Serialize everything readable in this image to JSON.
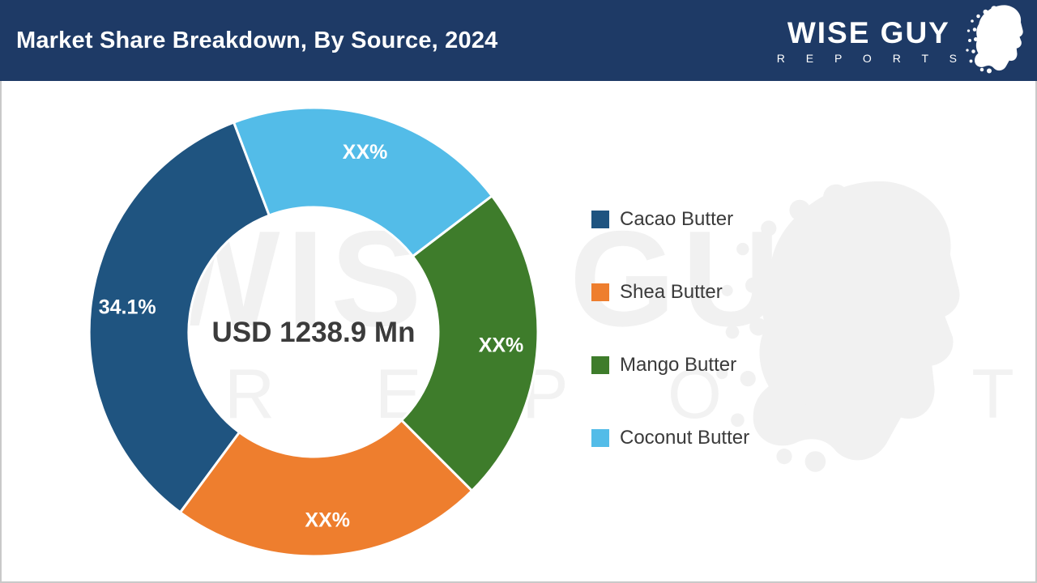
{
  "header": {
    "title": "Market Share Breakdown, By Source, 2024",
    "bg_color": "#1e3a66",
    "logo": {
      "line1": "WISE GUY",
      "line2": "R E P O R T S"
    }
  },
  "watermark": {
    "line1": "WISE GUY",
    "line2": "R E P O R T S"
  },
  "chart_data": {
    "type": "donut",
    "title": "Market Share Breakdown, By Source, 2024",
    "center_label": "USD 1238.9 Mn",
    "legend_position": "right",
    "start_angle_deg": 110.8,
    "direction": "counterclockwise",
    "segments": [
      {
        "name": "Cacao Butter",
        "display_label": "34.1%",
        "share_pct": 34.1,
        "color": "#1f5480"
      },
      {
        "name": "Shea Butter",
        "display_label": "XX%",
        "share_pct": 22.6,
        "color": "#ee7e2e"
      },
      {
        "name": "Mango Butter",
        "display_label": "XX%",
        "share_pct": 22.9,
        "color": "#3e7c2b"
      },
      {
        "name": "Coconut Butter",
        "display_label": "XX%",
        "share_pct": 20.4,
        "color": "#53bce8"
      }
    ]
  }
}
